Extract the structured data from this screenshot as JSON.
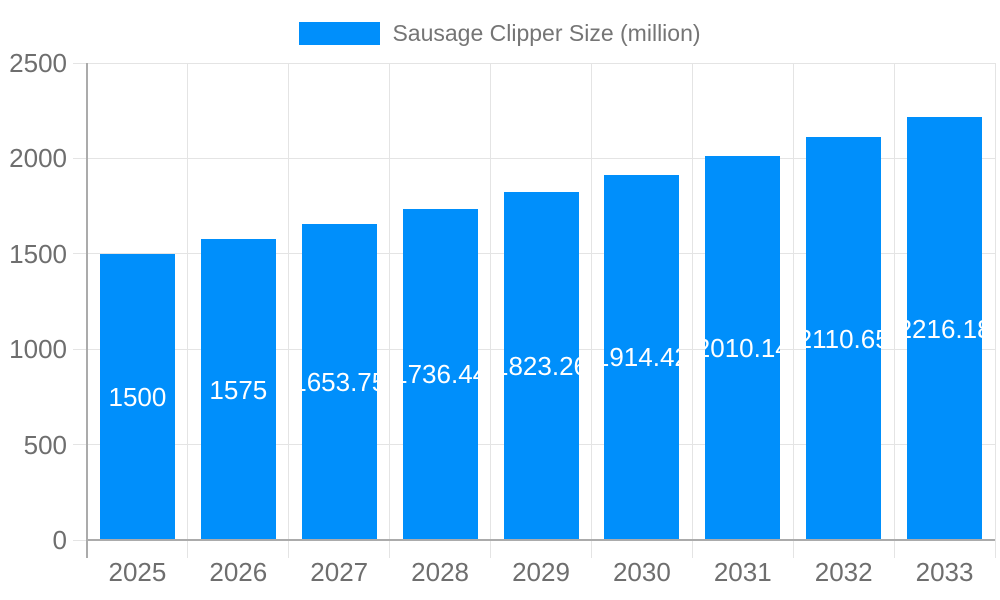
{
  "chart_data": {
    "type": "bar",
    "title": "Sausage Clipper Size (million)",
    "legend": {
      "position": "top",
      "label": "Sausage Clipper Size (million)"
    },
    "categories": [
      "2025",
      "2026",
      "2027",
      "2028",
      "2029",
      "2030",
      "2031",
      "2032",
      "2033"
    ],
    "series": [
      {
        "name": "Sausage Clipper Size (million)",
        "values": [
          1500,
          1575,
          1653.75,
          1736.44,
          1823.26,
          1914.42,
          2010.14,
          2110.65,
          2216.18
        ]
      }
    ],
    "value_labels": [
      "1500",
      "1575",
      "1653.75",
      "1736.44",
      "1823.26",
      "1914.42",
      "2010.14",
      "2110.65",
      "2216.18"
    ],
    "xlabel": "",
    "ylabel": "",
    "ylim": [
      0,
      2500
    ],
    "yticks": [
      0,
      500,
      1000,
      1500,
      2000,
      2500
    ],
    "grid": true,
    "colors": {
      "bar": "#008FFB",
      "grid": "#e4e4e4",
      "axis": "#ababab",
      "axis_label": "#6e6e6e",
      "legend_text": "#757575",
      "bar_label": "#ffffff",
      "background": "#ffffff"
    }
  }
}
